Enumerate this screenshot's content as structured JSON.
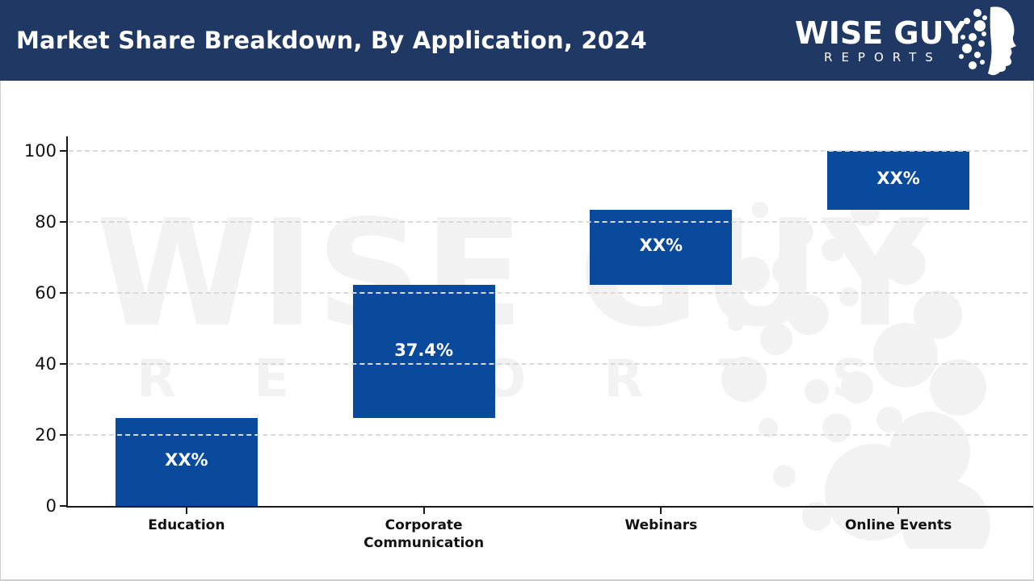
{
  "header": {
    "title": "Market Share Breakdown, By Application, 2024",
    "logo": {
      "line1": "WISE GUY",
      "line2": "REPORTS"
    }
  },
  "watermark": {
    "line1": "WISE GUY",
    "line2": "REPORTS"
  },
  "chart_data": {
    "type": "bar",
    "subtype": "floating-waterfall",
    "title": "Market Share Breakdown, By Application, 2024",
    "categories": [
      "Education",
      "Corporate Communication",
      "Webinars",
      "Online Events"
    ],
    "segments": [
      {
        "category": "Education",
        "start": 0,
        "end": 24.8,
        "label": "XX%"
      },
      {
        "category": "Corporate Communication",
        "start": 24.8,
        "end": 62.2,
        "label": "37.4%"
      },
      {
        "category": "Webinars",
        "start": 62.2,
        "end": 83.5,
        "label": "XX%"
      },
      {
        "category": "Online Events",
        "start": 83.5,
        "end": 100,
        "label": "XX%"
      }
    ],
    "y_ticks": [
      0,
      20,
      40,
      60,
      80,
      100
    ],
    "ylim": [
      0,
      104
    ],
    "xlabel": "",
    "ylabel": "",
    "grid": "horizontal dashed, drawn over bars",
    "legend": "none",
    "bar_color": "#0a4a9d",
    "bar_label_color": "#ffffff",
    "axis_color": "#1a1a1a",
    "header_color": "#1f3864",
    "watermark_color": "#f2f2f2"
  }
}
